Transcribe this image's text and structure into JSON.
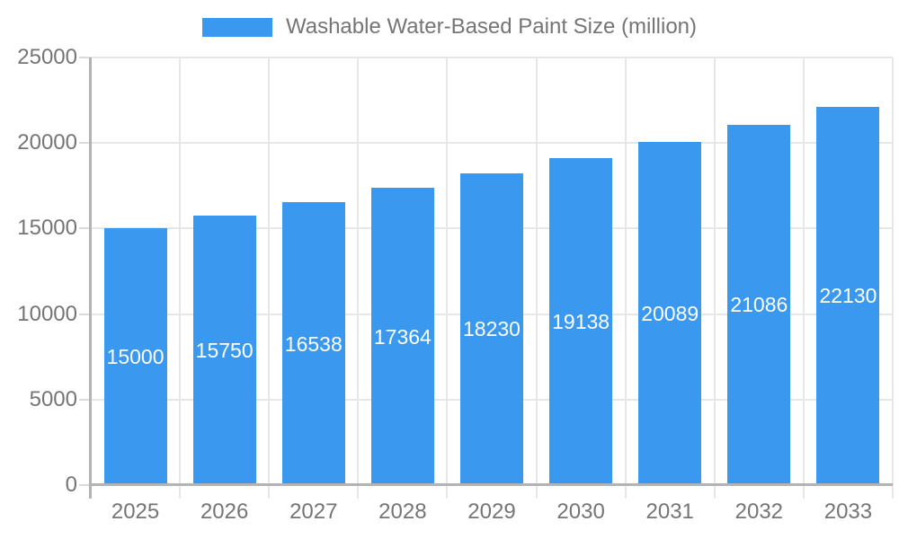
{
  "legend": {
    "label": "Washable Water-Based Paint Size (million)"
  },
  "chart_data": {
    "type": "bar",
    "title": "",
    "categories": [
      "2025",
      "2026",
      "2027",
      "2028",
      "2029",
      "2030",
      "2031",
      "2032",
      "2033"
    ],
    "values": [
      15000,
      15750,
      16538,
      17364,
      18230,
      19138,
      20089,
      21086,
      22130
    ],
    "series": [
      {
        "name": "Washable Water-Based Paint Size (million)",
        "values": [
          15000,
          15750,
          16538,
          17364,
          18230,
          19138,
          20089,
          21086,
          22130
        ]
      }
    ],
    "xlabel": "",
    "ylabel": "",
    "ylim": [
      0,
      25000
    ],
    "yticks": [
      0,
      5000,
      10000,
      15000,
      20000,
      25000
    ],
    "grid": true,
    "legend_position": "top",
    "value_label_position": "inside-center",
    "colors": {
      "bar": "#3A99EE",
      "grid": "#E7E7E7",
      "axis": "#B3B3B3",
      "tick": "#DADADA",
      "text": "#757575",
      "value_label": "#FFFFFF",
      "background": "#FFFFFF"
    }
  }
}
